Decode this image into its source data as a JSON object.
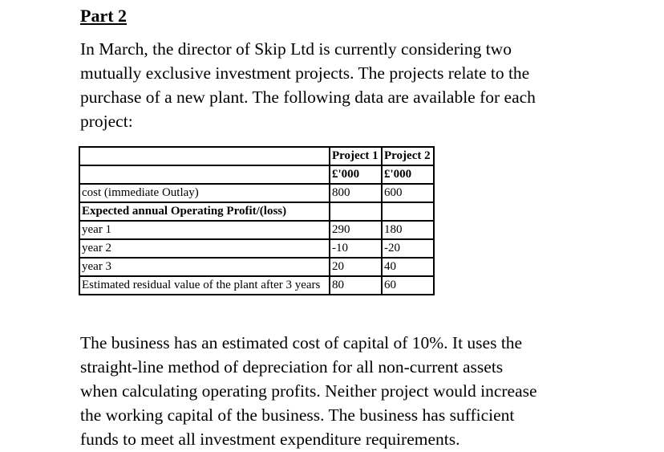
{
  "document": {
    "heading": "Part 2",
    "intro": "In March, the director of Skip Ltd is currently considering two\nmutually exclusive investment projects. The projects relate to the\npurchase of a new plant. The following data are available for each\nproject:",
    "notes": "The business has an estimated cost of capital of 10%. It uses the\nstraight-line method of depreciation for all non-current assets\nwhen calculating operating profits. Neither project would increase\nthe working capital of the business. The business has sufficient\nfunds to meet all investment expenditure requirements."
  },
  "table": {
    "header": {
      "col1": "",
      "col2": "Project 1",
      "col3": "Project 2"
    },
    "units": {
      "col1": "",
      "col2": "£'000",
      "col3": "£'000"
    },
    "rows": [
      {
        "label": "cost (immediate Outlay)",
        "project1": "800",
        "project2": "600"
      },
      {
        "label": "Expected annual Operating Profit/(loss)",
        "project1": "",
        "project2": ""
      },
      {
        "label": "year 1",
        "project1": "290",
        "project2": "180"
      },
      {
        "label": "year 2",
        "project1": "-10",
        "project2": "-20"
      },
      {
        "label": "year 3",
        "project1": "20",
        "project2": "40"
      },
      {
        "label": "Estimated residual value of the plant after 3 years",
        "project1": "80",
        "project2": "60"
      }
    ]
  }
}
